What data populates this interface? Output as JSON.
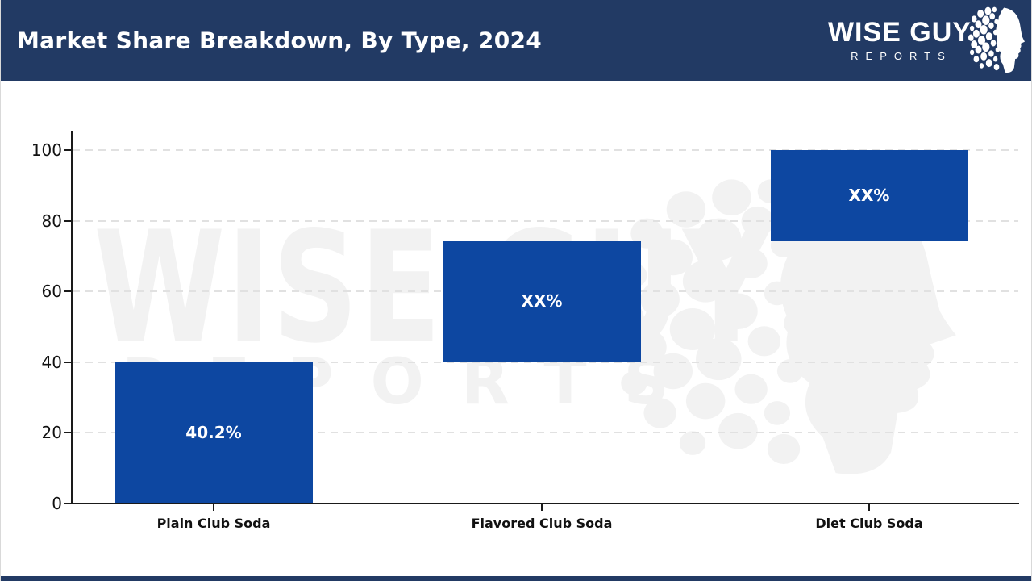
{
  "header": {
    "title": "Market Share Breakdown, By Type, 2024",
    "logo": {
      "line1": "WISE GUY",
      "line2": "REPORTS"
    }
  },
  "watermark": {
    "line1": "WISE GUY",
    "line2": "REPORTS"
  },
  "chart_data": {
    "type": "bar",
    "subtype": "waterfall",
    "title": "Market Share Breakdown, By Type, 2024",
    "categories": [
      "Plain Club Soda",
      "Flavored Club Soda",
      "Diet Club Soda"
    ],
    "segments": [
      {
        "category": "Plain Club Soda",
        "start": 0,
        "end": 40.2,
        "label": "40.2%"
      },
      {
        "category": "Flavored Club Soda",
        "start": 40.2,
        "end": 74.3,
        "label": "XX%"
      },
      {
        "category": "Diet Club Soda",
        "start": 74.3,
        "end": 100,
        "label": "XX%"
      }
    ],
    "yticks": [
      0,
      20,
      40,
      60,
      80,
      100
    ],
    "ylim": [
      0,
      105.5
    ],
    "grid": "horizontal-dashed",
    "legend": "none",
    "bar_color": "#0d47a1",
    "value_label_color": "#ffffff"
  },
  "colors": {
    "header_bg": "#223a64",
    "footer_bg": "#223a64",
    "bar": "#0d47a1",
    "gridline": "#e1e1e1",
    "watermark": "#f2f2f2",
    "axis": "#1a1a1a"
  }
}
